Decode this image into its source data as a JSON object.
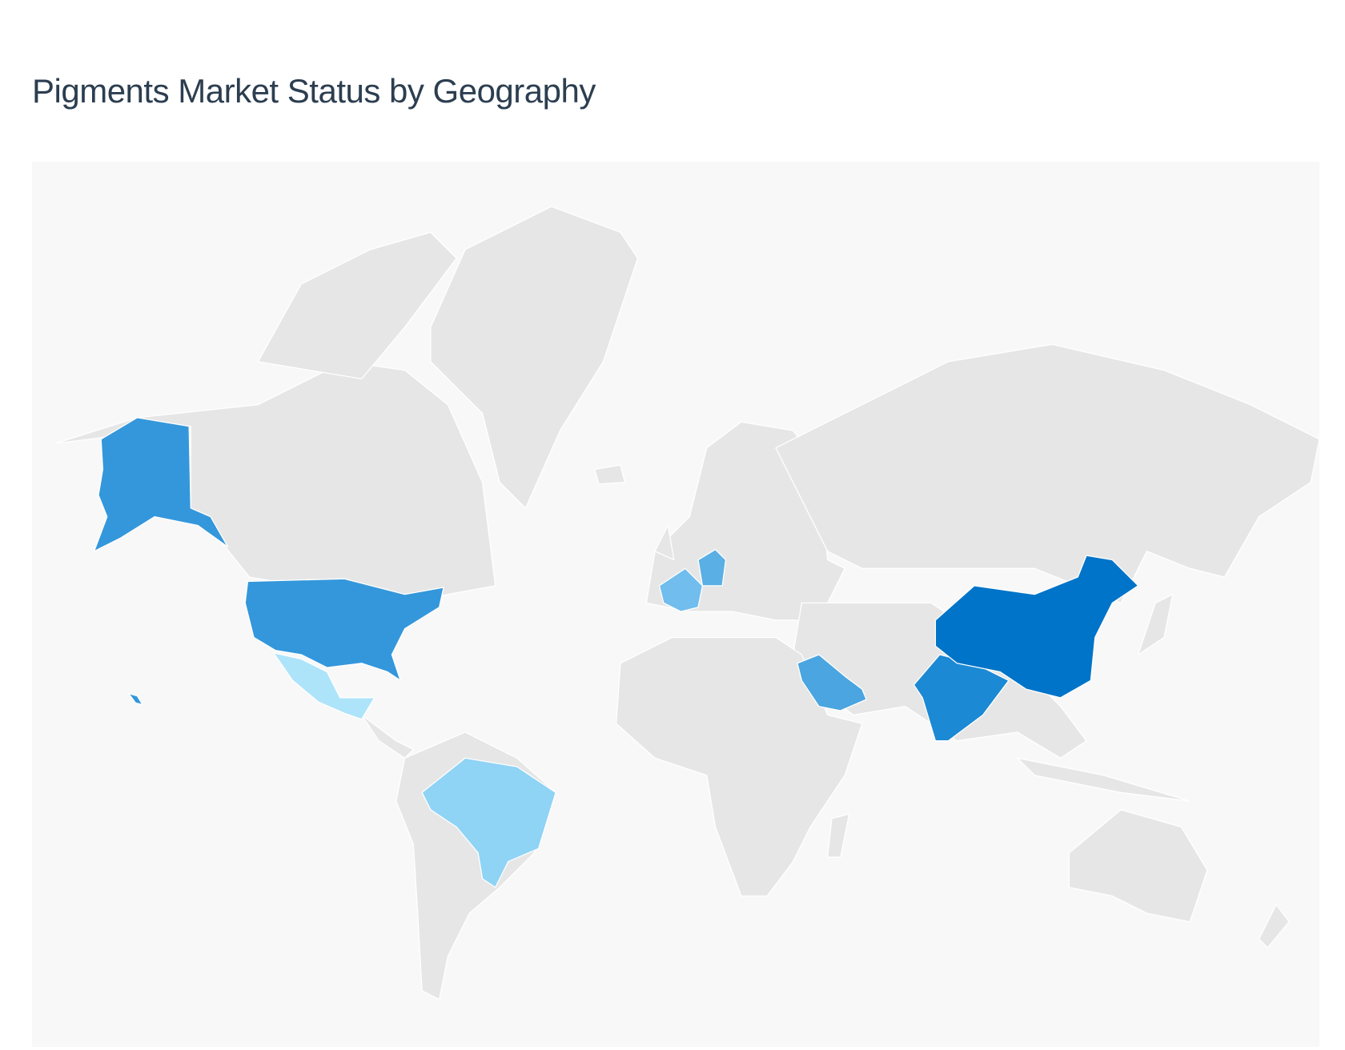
{
  "header": {
    "title": "Pigments Market Status by Geography"
  },
  "map": {
    "background_color": "#f8f8f8",
    "default_land_color": "#e6e6e6",
    "highlighted_region_colors": {
      "china": "#0074c8",
      "india": "#1b89d4",
      "usa": "#3497db",
      "saudi-arabia": "#4aa5e0",
      "germany": "#5aafe5",
      "france": "#70bdee",
      "brazil": "#8fd3f5",
      "mexico": "#aee4fa"
    }
  }
}
